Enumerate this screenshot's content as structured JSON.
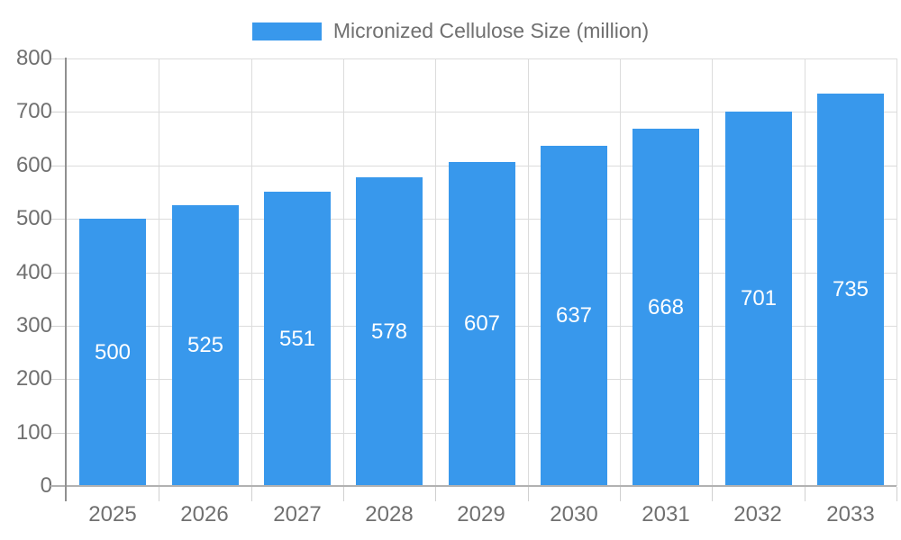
{
  "chart_data": {
    "type": "bar",
    "title": "",
    "legend_label": "Micronized Cellulose Size (million)",
    "legend_position": "top",
    "categories": [
      "2025",
      "2026",
      "2027",
      "2028",
      "2029",
      "2030",
      "2031",
      "2032",
      "2033"
    ],
    "values": [
      500,
      525,
      551,
      578,
      607,
      637,
      668,
      701,
      735
    ],
    "xlabel": "",
    "ylabel": "",
    "ylim": [
      0,
      800
    ],
    "ytick_step": 100,
    "yticks": [
      0,
      100,
      200,
      300,
      400,
      500,
      600,
      700,
      800
    ],
    "grid": true,
    "value_label_position": "inside-center"
  },
  "colors": {
    "bar": "#3898EC",
    "bar_value_text": "#FFFFFF",
    "axis_text": "#707070",
    "legend_text": "#707070",
    "grid_line": "#DCDCDC",
    "tick": "#D0D0D0",
    "y_axis_line": "#909090",
    "x_axis_line": "#B2B2B2",
    "background": "#FFFFFF"
  }
}
